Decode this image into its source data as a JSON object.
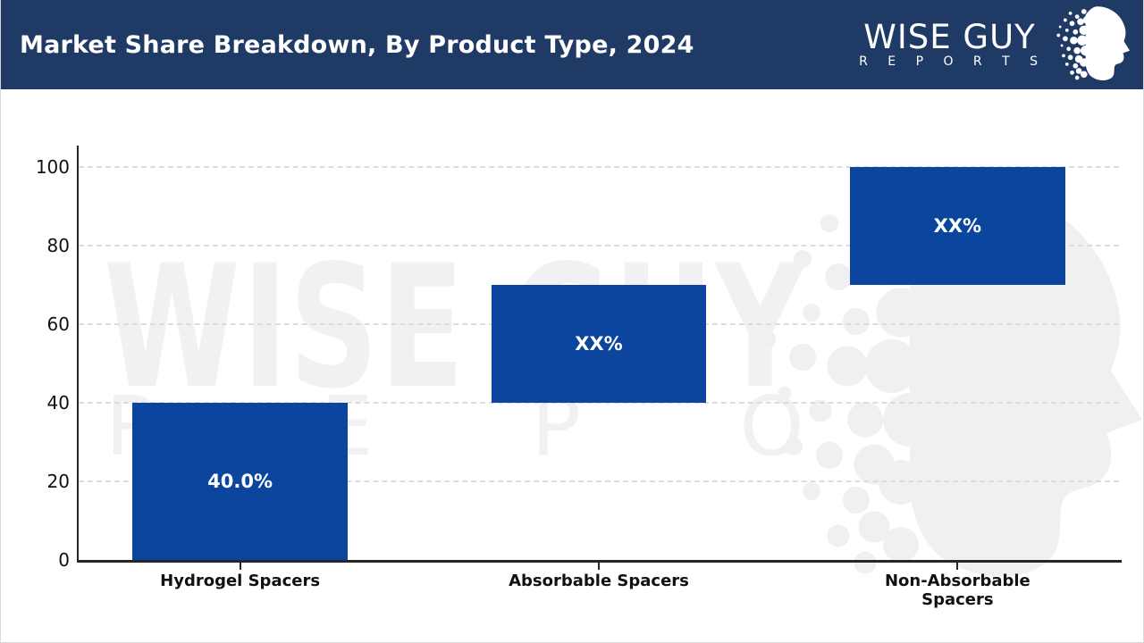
{
  "header": {
    "title": "Market Share Breakdown, By Product Type, 2024",
    "logo": {
      "wordmark": "WISE GUY",
      "sub": "R E P O R T S"
    }
  },
  "watermark": {
    "wordmark": "WISE GUY",
    "sub": "R E P O R T S"
  },
  "chart_data": {
    "type": "bar",
    "variant": "floating-segment-waterfall",
    "title": "Market Share Breakdown, By Product Type, 2024",
    "categories": [
      "Hydrogel Spacers",
      "Absorbable Spacers",
      "Non-Absorbable Spacers"
    ],
    "bars": [
      {
        "from": 0,
        "to": 40,
        "label": "40.0%"
      },
      {
        "from": 40,
        "to": 70,
        "label": "XX%"
      },
      {
        "from": 70,
        "to": 100,
        "label": "XX%"
      }
    ],
    "ylabel": "",
    "xlabel": "",
    "ylim": [
      0,
      105
    ],
    "yticks": [
      0,
      20,
      40,
      60,
      80,
      100
    ],
    "xlim": [
      -0.45,
      2.45
    ],
    "bar_width_units": 0.6,
    "grid": {
      "axis": "y",
      "style": "dashed"
    },
    "legend": null
  },
  "colors": {
    "header_bg": "#203A66",
    "bar_fill": "#0B459D",
    "bar_label": "#ffffff",
    "gridline": "#dcdcdc",
    "axis": "#262626",
    "tick_text": "#111111",
    "watermark": "#f1f1f1",
    "page_border": "#d9d9d9"
  }
}
